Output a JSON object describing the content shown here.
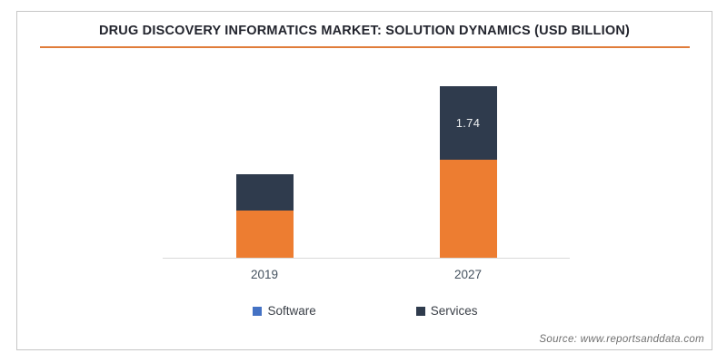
{
  "title": "DRUG DISCOVERY INFORMATICS MARKET: SOLUTION DYNAMICS (USD BILLION)",
  "source_note": "Source: www.reportsanddata.com",
  "colors": {
    "software_bar": "#ED7D31",
    "services_bar": "#2F3B4D",
    "software_legend_swatch": "#4472C4",
    "services_legend_swatch": "#2F3B4D",
    "divider": "#E07C3A",
    "axis_line": "#D9D9D9",
    "title_text": "#23252E"
  },
  "legend": [
    {
      "label": "Software",
      "swatch": "#4472C4"
    },
    {
      "label": "Services",
      "swatch": "#2F3B4D"
    }
  ],
  "chart_data": {
    "type": "bar",
    "stacked": true,
    "title": "DRUG DISCOVERY INFORMATICS MARKET: SOLUTION DYNAMICS (USD BILLION)",
    "value_unit": "USD Billion",
    "categories": [
      "2019",
      "2027"
    ],
    "series": [
      {
        "name": "Software",
        "color": "#ED7D31",
        "values": [
          1.12,
          2.32
        ],
        "labels": [
          "",
          ""
        ]
      },
      {
        "name": "Services",
        "color": "#2F3B4D",
        "values": [
          0.86,
          1.74
        ],
        "labels": [
          "",
          "1.74"
        ]
      }
    ],
    "shown_data_labels": [
      "1.74"
    ],
    "xlabel": "",
    "ylabel": "",
    "y_axis_shown": false,
    "grid": false,
    "legend_position": "bottom"
  }
}
